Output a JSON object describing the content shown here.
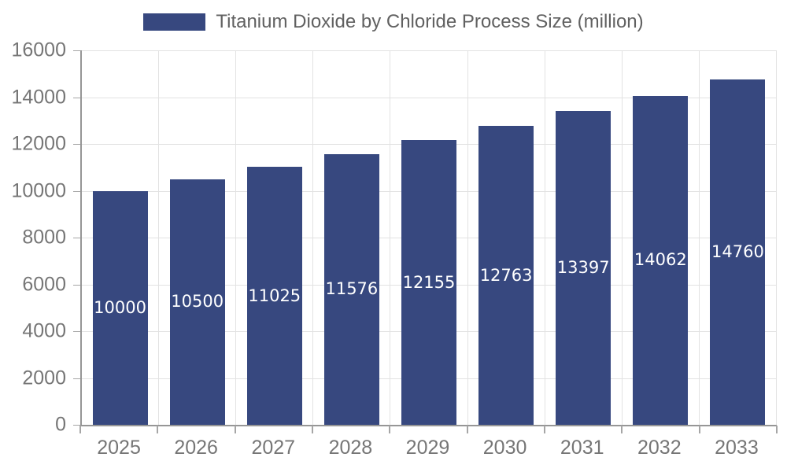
{
  "chart_data": {
    "type": "bar",
    "title": "Titanium Dioxide by Chloride Process Size (million)",
    "legend": {
      "position": "top",
      "entries": [
        "Titanium Dioxide by Chloride Process Size (million)"
      ]
    },
    "categories": [
      "2025",
      "2026",
      "2027",
      "2028",
      "2029",
      "2030",
      "2031",
      "2032",
      "2033"
    ],
    "values": [
      10000,
      10500,
      11025,
      11576,
      12155,
      12763,
      13397,
      14062,
      14760
    ],
    "xlabel": "",
    "ylabel": "",
    "ylim": [
      0,
      16000
    ],
    "yticks": [
      0,
      2000,
      4000,
      6000,
      8000,
      10000,
      12000,
      14000,
      16000
    ],
    "grid": true,
    "bar_label_position": "center",
    "colors": {
      "bar": "#37487f",
      "bar_label": "#ffffff",
      "axis_text": "#767676",
      "title_text": "#616161",
      "grid_line": "#e2e2e2",
      "axis_line": "#969696",
      "tick_mark": "#a6a6a6",
      "background": "#ffffff"
    }
  }
}
